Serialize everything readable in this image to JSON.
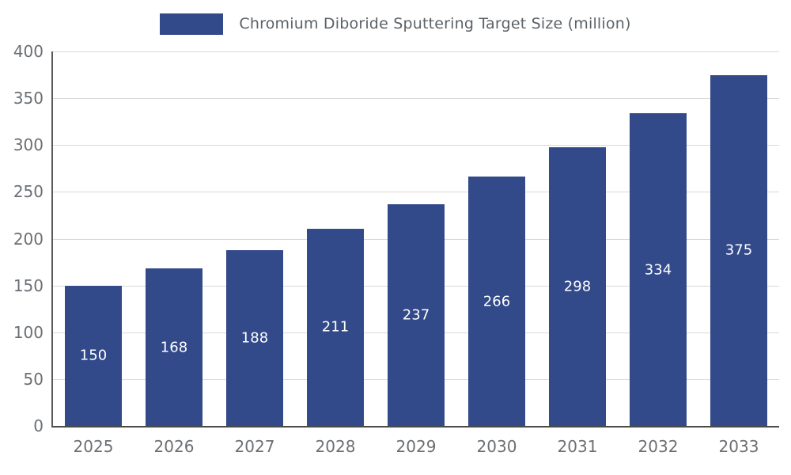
{
  "chart_data": {
    "type": "bar",
    "title": "Chromium Diboride Sputtering Target Size (million)",
    "categories": [
      "2025",
      "2026",
      "2027",
      "2028",
      "2029",
      "2030",
      "2031",
      "2032",
      "2033"
    ],
    "values": [
      150,
      168,
      188,
      211,
      237,
      266,
      298,
      334,
      375
    ],
    "xlabel": "",
    "ylabel": "",
    "ylim": [
      0,
      400
    ],
    "yticks": [
      0,
      50,
      100,
      150,
      200,
      250,
      300,
      350,
      400
    ],
    "grid": "horizontal",
    "legend_position": "top",
    "bar_color": "#32498a",
    "value_label_color": "#ffffff",
    "axis_label_color": "#6b6f73",
    "title_color": "#5a6268",
    "gridline_color": "#d9d9d9"
  }
}
